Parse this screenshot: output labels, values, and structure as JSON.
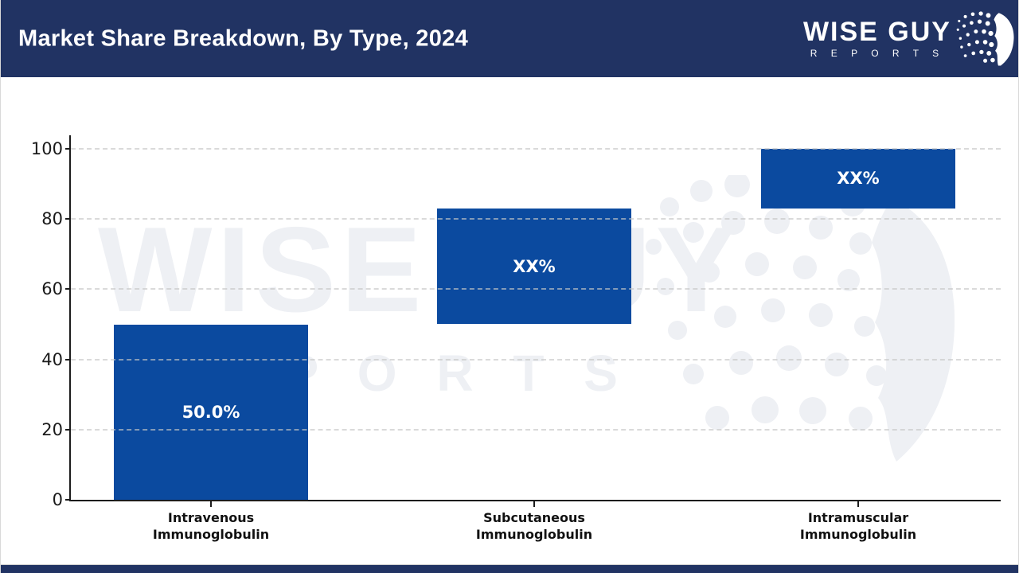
{
  "header": {
    "title": "Market Share Breakdown, By Type, 2024",
    "logo": {
      "line1": "WISE GUY",
      "line2": "R E P O R T S"
    }
  },
  "watermark": {
    "line1": "WISE GUY",
    "line2": "R E P O R T S"
  },
  "chart_data": {
    "type": "bar",
    "subtype": "waterfall",
    "title": "Market Share Breakdown, By Type, 2024",
    "categories": [
      "Intravenous Immunoglobulin",
      "Subcutaneous Immunoglobulin",
      "Intramuscular Immunoglobulin"
    ],
    "category_lines": [
      [
        "Intravenous",
        "Immunoglobulin"
      ],
      [
        "Subcutaneous",
        "Immunoglobulin"
      ],
      [
        "Intramuscular",
        "Immunoglobulin"
      ]
    ],
    "segments": [
      {
        "category": "Intravenous Immunoglobulin",
        "start": 0,
        "end": 50,
        "label": "50.0%"
      },
      {
        "category": "Subcutaneous Immunoglobulin",
        "start": 50,
        "end": 83,
        "label": "XX%"
      },
      {
        "category": "Intramuscular Immunoglobulin",
        "start": 83,
        "end": 100,
        "label": "XX%"
      }
    ],
    "yticks": [
      0,
      20,
      40,
      60,
      80,
      100
    ],
    "ylim": [
      0,
      100
    ],
    "xlabel": "",
    "ylabel": "",
    "grid": "horizontal-dashed",
    "legend": "none"
  },
  "colors": {
    "header_bg": "#213363",
    "footer_bg": "#213363",
    "bar": "#0b4a9f",
    "axis": "#1c1c1c",
    "grid": "#c6c6c6",
    "watermark": "#eef0f4",
    "title_text": "#ffffff",
    "bar_label_text": "#ffffff",
    "tick_label_text": "#1a1a1a"
  }
}
